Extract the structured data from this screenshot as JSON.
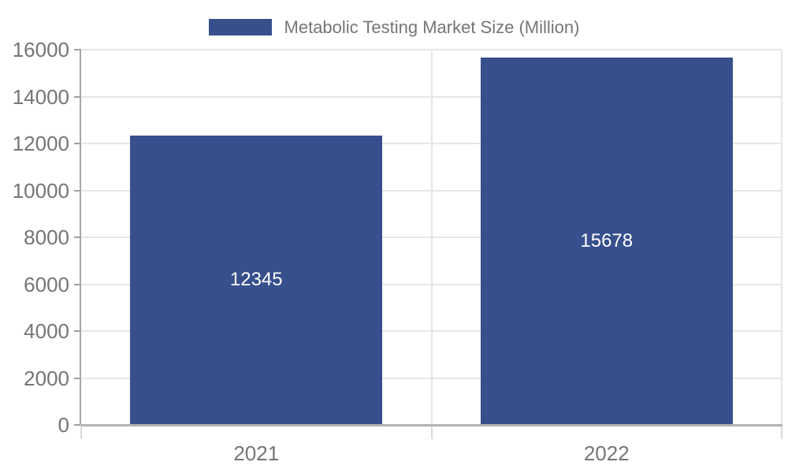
{
  "chart_data": {
    "type": "bar",
    "title": "Metabolic Testing Market Size (Million)",
    "categories": [
      "2021",
      "2022"
    ],
    "series": [
      {
        "name": "Metabolic Testing Market Size (Million)",
        "values": [
          12345,
          15678
        ]
      }
    ],
    "bar_value_labels": [
      "12345",
      "15678"
    ],
    "xlabel": "",
    "ylabel": "",
    "ylim": [
      0,
      16000
    ],
    "ytick_step": 2000,
    "ytick_labels": [
      "0",
      "2000",
      "4000",
      "6000",
      "8000",
      "10000",
      "12000",
      "14000",
      "16000"
    ],
    "grid": true,
    "legend": {
      "position": "top-center",
      "entries": [
        "Metabolic Testing Market Size (Million)"
      ]
    },
    "colors": {
      "bar": "#374F8C",
      "bar_value_label": "#FFFFFF",
      "grid_line": "#E6E6E6",
      "split_line": "#E6E6E6",
      "y_axis_line": "#A6A6A6",
      "x_axis_line": "#B3B3B3",
      "y_tick_mark": "#A0A0A0",
      "x_tick_mark": "#D9D9D9",
      "tick_label_text": "#757575",
      "legend_text": "#757575",
      "background": "#FFFFFF"
    }
  }
}
